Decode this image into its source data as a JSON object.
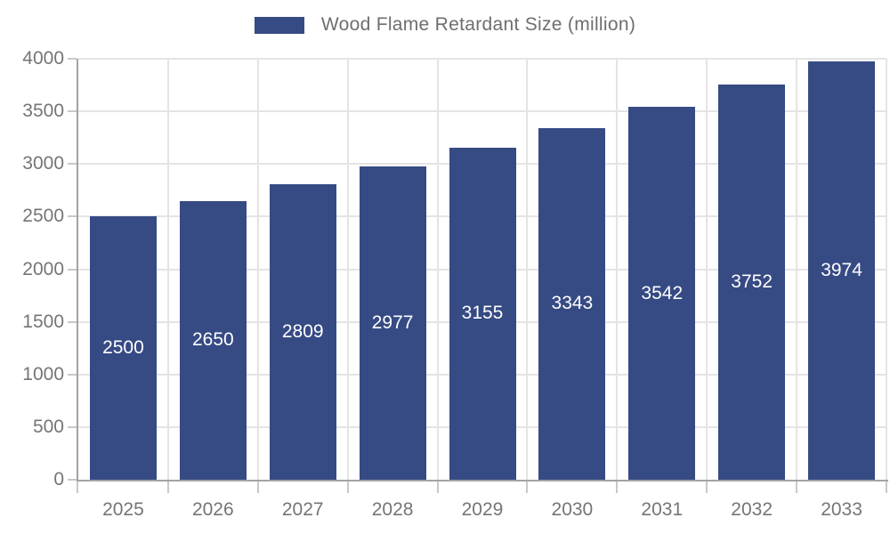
{
  "legend": {
    "label": "Wood Flame Retardant Size (million)",
    "swatch_color": "#364a84"
  },
  "chart_data": {
    "type": "bar",
    "title": "Wood Flame Retardant Size (million)",
    "categories": [
      "2025",
      "2026",
      "2027",
      "2028",
      "2029",
      "2030",
      "2031",
      "2032",
      "2033"
    ],
    "series": [
      {
        "name": "Wood Flame Retardant Size (million)",
        "values": [
          2500,
          2650,
          2809,
          2977,
          3155,
          3343,
          3542,
          3752,
          3974
        ]
      }
    ],
    "values": [
      2500,
      2650,
      2809,
      2977,
      3155,
      3343,
      3542,
      3752,
      3974
    ],
    "value_labels_shown": true,
    "xlabel": "",
    "ylabel": "",
    "ylim": [
      0,
      4000
    ],
    "yticks": [
      0,
      500,
      1000,
      1500,
      2000,
      2500,
      3000,
      3500,
      4000
    ],
    "grid": true,
    "legend_position": "top-center",
    "style": {
      "bar_color": "#364a84",
      "grid_color": "#e4e4e4",
      "axis_color": "#a3a3a3",
      "tick_color": "#c9c9c9",
      "tick_label_color": "#757575",
      "value_label_color": "#ffffff",
      "background_color": "#ffffff"
    }
  }
}
